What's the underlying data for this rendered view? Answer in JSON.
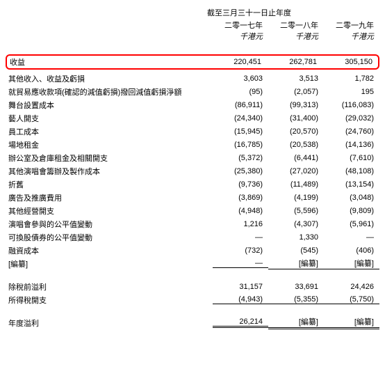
{
  "header": {
    "period_title": "截至三月三十一日止年度",
    "col1": "二零一七年",
    "col2": "二零一八年",
    "col3": "二零一九年",
    "unit": "千港元"
  },
  "rows": {
    "revenue": {
      "label": "收益",
      "v1": "220,451",
      "v2": "262,781",
      "v3": "305,150"
    },
    "other_income": {
      "label": "其他收入、收益及虧損",
      "v1": "3,603",
      "v2": "3,513",
      "v3": "1,782"
    },
    "trade_recv": {
      "label": "就貿易應收款項(確認的減值虧損)撥回減值虧損淨額",
      "v1": "(95)",
      "v2": "(2,057)",
      "v3": "195"
    },
    "stage_cost": {
      "label": "舞台設置成本",
      "v1": "(86,911)",
      "v2": "(99,313)",
      "v3": "(116,083)"
    },
    "artist_cost": {
      "label": "藝人開支",
      "v1": "(24,340)",
      "v2": "(31,400)",
      "v3": "(29,032)"
    },
    "staff_cost": {
      "label": "員工成本",
      "v1": "(15,945)",
      "v2": "(20,570)",
      "v3": "(24,760)"
    },
    "venue_rent": {
      "label": "場地租金",
      "v1": "(16,785)",
      "v2": "(20,538)",
      "v3": "(14,136)"
    },
    "office_rent": {
      "label": "辦公室及倉庫租金及相關開支",
      "v1": "(5,372)",
      "v2": "(6,441)",
      "v3": "(7,610)"
    },
    "other_concert": {
      "label": "其他演唱會籌辦及製作成本",
      "v1": "(25,380)",
      "v2": "(27,020)",
      "v3": "(48,108)"
    },
    "depreciation": {
      "label": "折舊",
      "v1": "(9,736)",
      "v2": "(11,489)",
      "v3": "(13,154)"
    },
    "ad_promo": {
      "label": "廣告及推廣費用",
      "v1": "(3,869)",
      "v2": "(4,199)",
      "v3": "(3,048)"
    },
    "other_op": {
      "label": "其他經營開支",
      "v1": "(4,948)",
      "v2": "(5,596)",
      "v3": "(9,809)"
    },
    "concert_fv": {
      "label": "演唱會參與的公平值變動",
      "v1": "1,216",
      "v2": "(4,307)",
      "v3": "(5,961)"
    },
    "convertible_fv": {
      "label": "可換股債券的公平值變動",
      "v1": "—",
      "v2": "1,330",
      "v3": "—"
    },
    "finance_cost": {
      "label": "融資成本",
      "v1": "(732)",
      "v2": "(545)",
      "v3": "(406)"
    },
    "redacted1": {
      "label": "[編纂]",
      "v1": "—",
      "v2": "[編纂]",
      "v3": "[編纂]"
    },
    "pbt": {
      "label": "除稅前溢利",
      "v1": "31,157",
      "v2": "33,691",
      "v3": "24,426"
    },
    "tax": {
      "label": "所得稅開支",
      "v1": "(4,943)",
      "v2": "(5,355)",
      "v3": "(5,750)"
    },
    "profit": {
      "label": "年度溢利",
      "v1": "26,214",
      "v2": "[編纂]",
      "v3": "[編纂]"
    }
  }
}
